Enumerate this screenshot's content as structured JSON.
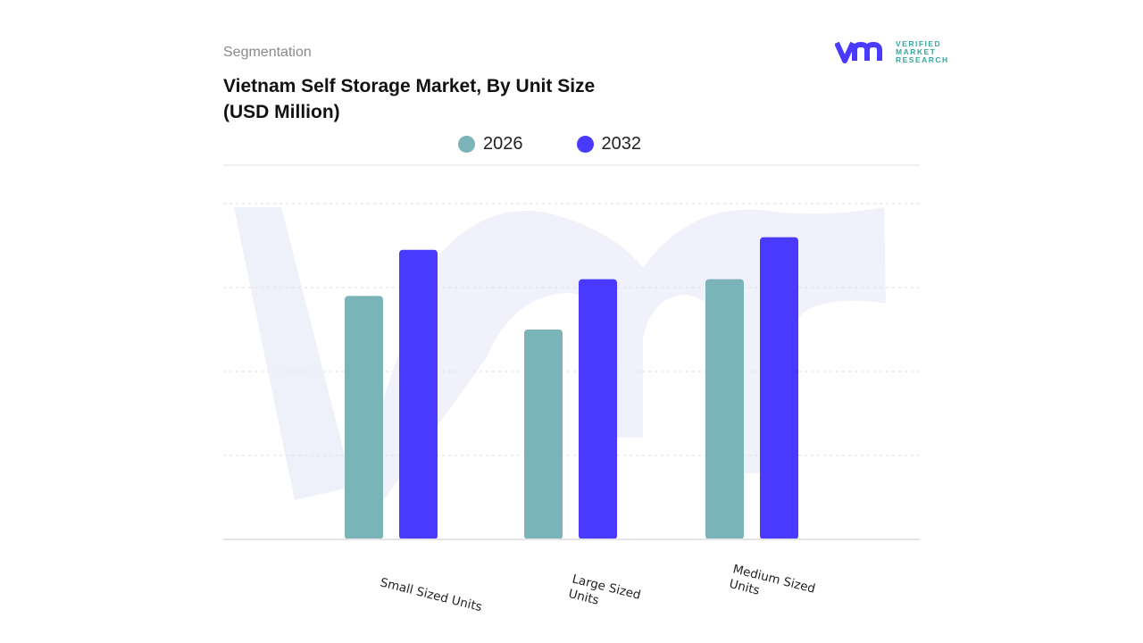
{
  "header": {
    "segment_label": "Segmentation",
    "title": "Vietnam Self Storage Market, By Unit Size (USD Million)"
  },
  "logo": {
    "text_lines": [
      "VERIFIED",
      "MARKET",
      "RESEARCH"
    ],
    "mark": "vmr"
  },
  "colors": {
    "2026": "#7ab3b8",
    "2032": "#4a3aff",
    "grid": "#e6e6ea",
    "watermark": "#eef0fa"
  },
  "chart_data": {
    "type": "bar",
    "title": "Vietnam Self Storage Market, By Unit Size (USD Million)",
    "xlabel": "",
    "ylabel": "",
    "categories": [
      "Small Sized Units",
      "Large Sized Units",
      "Medium Sized Units"
    ],
    "series": [
      {
        "name": "2026",
        "values": [
          2.9,
          2.5,
          3.1
        ]
      },
      {
        "name": "2032",
        "values": [
          3.45,
          3.1,
          3.6
        ]
      }
    ],
    "ylim": [
      0,
      4
    ],
    "y_ticks_labeled": false,
    "grid": true,
    "legend": "top-center"
  }
}
